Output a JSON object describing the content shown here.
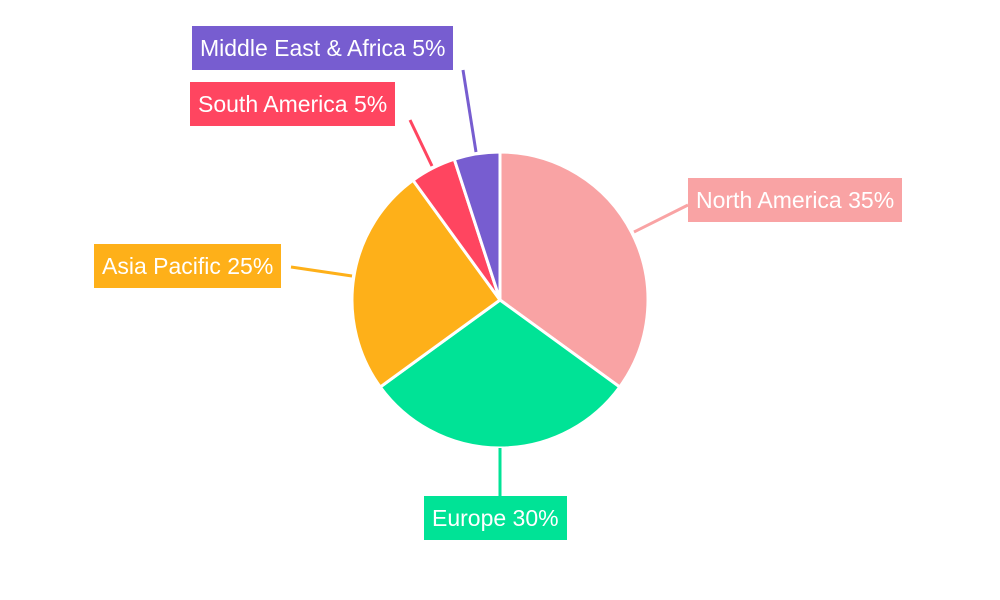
{
  "chart_data": {
    "type": "pie",
    "start_angle": "top, clockwise",
    "slices": [
      {
        "label": "North America",
        "value": 35,
        "display": "North America 35%",
        "color": "#F9A3A4"
      },
      {
        "label": "Europe",
        "value": 30,
        "display": "Europe 30%",
        "color": "#00E396"
      },
      {
        "label": "Asia Pacific",
        "value": 25,
        "display": "Asia Pacific 25%",
        "color": "#FEB019"
      },
      {
        "label": "South America",
        "value": 5,
        "display": "South America 5%",
        "color": "#FF4560"
      },
      {
        "label": "Middle East & Africa",
        "value": 5,
        "display": "Middle East & Africa 5%",
        "color": "#775DD0"
      }
    ],
    "legend": "none; labels outside with leader lines"
  }
}
